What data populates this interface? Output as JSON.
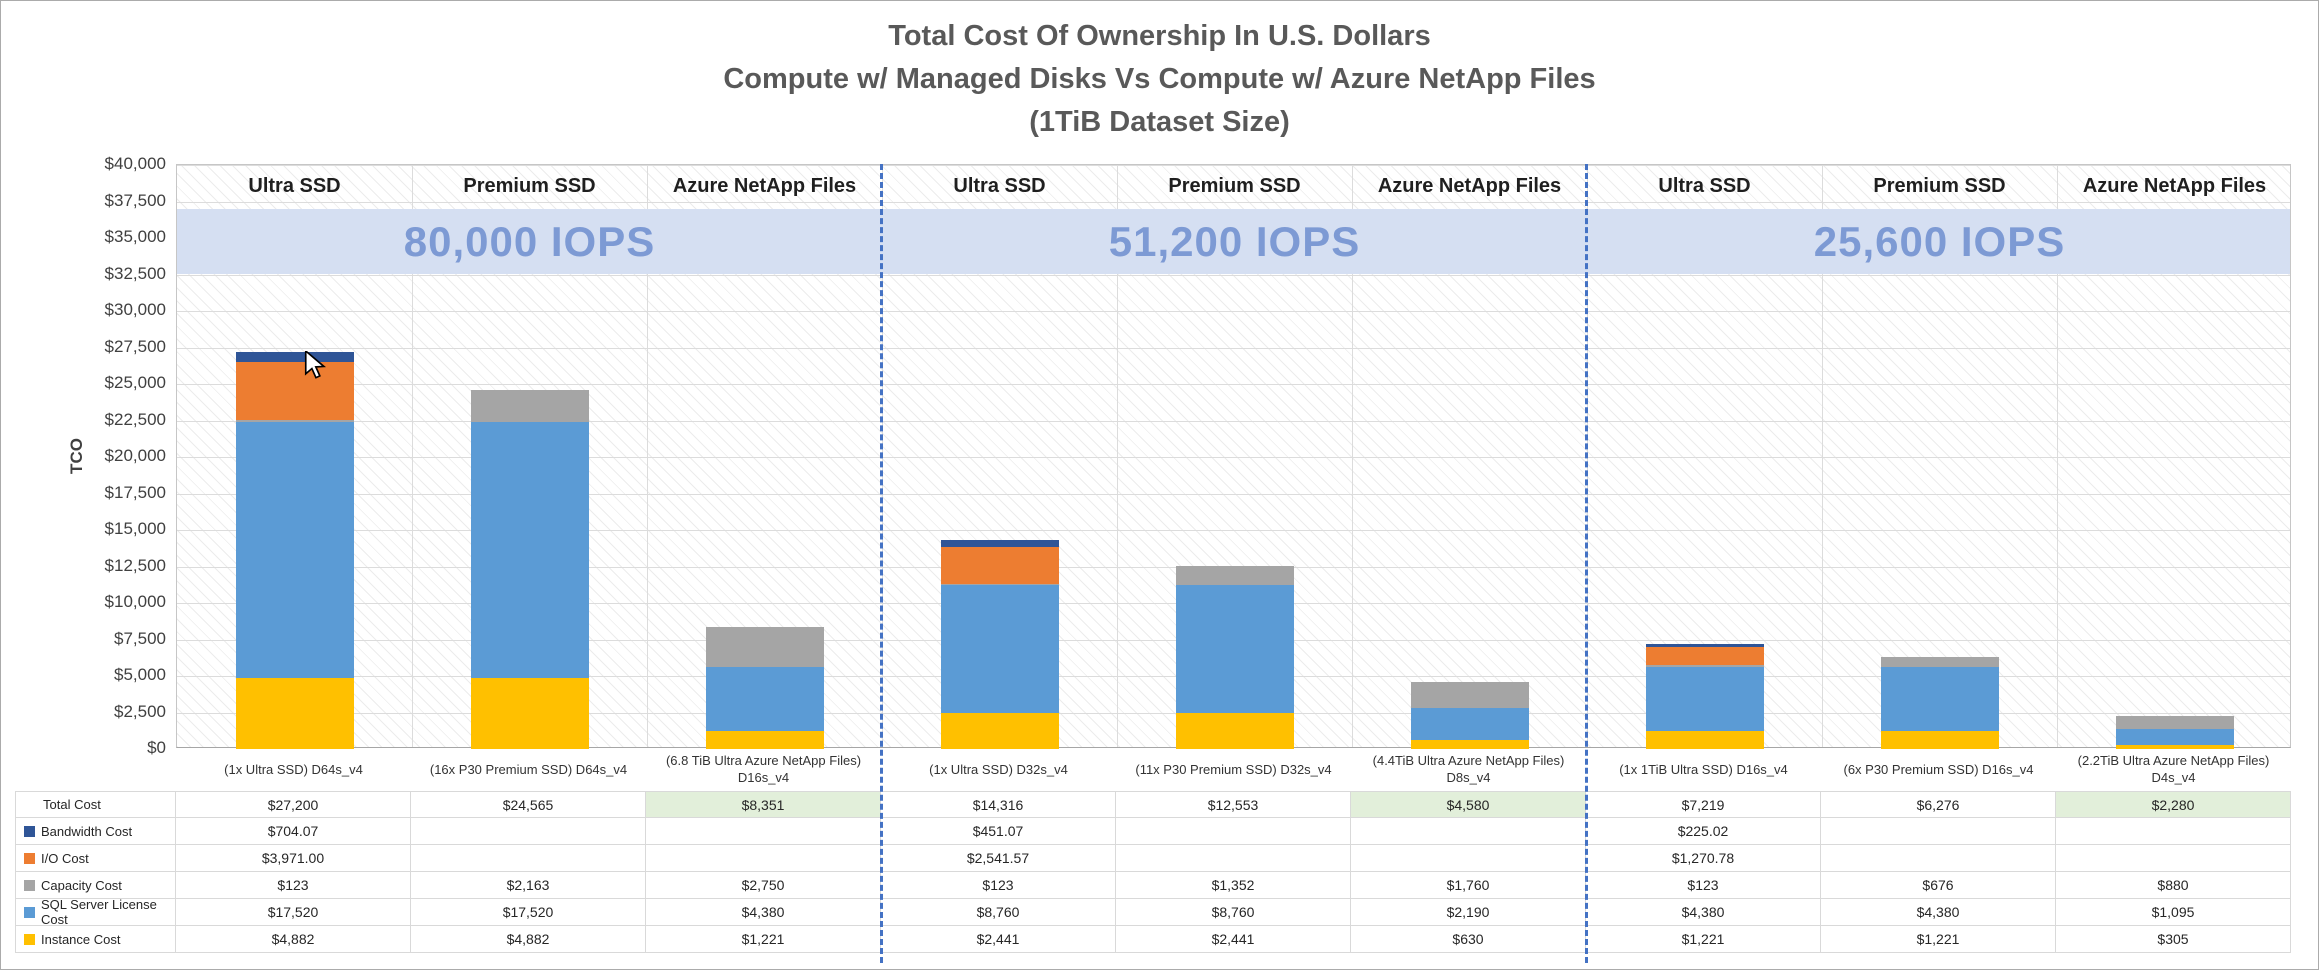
{
  "title": {
    "line1": "Total Cost Of Ownership In U.S. Dollars",
    "line2": "Compute w/ Managed Disks Vs Compute w/ Azure NetApp Files",
    "line3": "(1TiB Dataset Size)"
  },
  "y_axis": {
    "label": "TCO",
    "step": 2500,
    "ticks": [
      "$0",
      "$2,500",
      "$5,000",
      "$7,500",
      "$10,000",
      "$12,500",
      "$15,000",
      "$17,500",
      "$20,000",
      "$22,500",
      "$25,000",
      "$27,500",
      "$30,000",
      "$32,500",
      "$35,000",
      "$37,500",
      "$40,000"
    ]
  },
  "groups": [
    {
      "iops_label": "80,000 IOPS",
      "columns": [
        "Ultra SSD",
        "Premium SSD",
        "Azure NetApp Files"
      ]
    },
    {
      "iops_label": "51,200 IOPS",
      "columns": [
        "Ultra SSD",
        "Premium SSD",
        "Azure NetApp Files"
      ]
    },
    {
      "iops_label": "25,600 IOPS",
      "columns": [
        "Ultra SSD",
        "Premium SSD",
        "Azure NetApp Files"
      ]
    }
  ],
  "chart_data": {
    "type": "bar",
    "stacked": true,
    "title": "Total Cost Of Ownership In U.S. Dollars",
    "ylabel": "TCO",
    "ylim": [
      0,
      40000
    ],
    "grid": true,
    "categories": [
      "(1x Ultra SSD) D64s_v4",
      "(16x P30 Premium SSD) D64s_v4",
      "(6.8 TiB Ultra Azure NetApp Files) D16s_v4",
      "(1x Ultra SSD) D32s_v4",
      "(11x P30 Premium SSD) D32s_v4",
      "(4.4TiB Ultra Azure NetApp Files) D8s_v4",
      "(1x 1TiB Ultra SSD) D16s_v4",
      "(6x P30 Premium SSD) D16s_v4",
      "(2.2TiB Ultra Azure NetApp Files) D4s_v4"
    ],
    "series": [
      {
        "name": "Instance Cost",
        "color": "#FFC000",
        "values": [
          4882,
          4882,
          1221,
          2441,
          2441,
          630,
          1221,
          1221,
          305
        ]
      },
      {
        "name": "SQL Server License Cost",
        "color": "#5B9BD5",
        "values": [
          17520,
          17520,
          4380,
          8760,
          8760,
          2190,
          4380,
          4380,
          1095
        ]
      },
      {
        "name": "Capacity Cost",
        "color": "#A5A5A5",
        "values": [
          123,
          2163,
          2750,
          123,
          1352,
          1760,
          123,
          676,
          880
        ]
      },
      {
        "name": "I/O Cost",
        "color": "#ED7D31",
        "values": [
          3971,
          0,
          0,
          2541.57,
          0,
          0,
          1270.78,
          0,
          0
        ]
      },
      {
        "name": "Bandwidth Cost",
        "color": "#2F5597",
        "values": [
          704.07,
          0,
          0,
          451.07,
          0,
          0,
          225.02,
          0,
          0
        ]
      }
    ],
    "totals": [
      27200,
      24565,
      8351,
      14316,
      12553,
      4580,
      7219,
      6276,
      2280
    ],
    "stack_order": "bottom-up",
    "legend_position": "table-left"
  },
  "table": {
    "rows": [
      {
        "label": "Total Cost",
        "swatch": null,
        "highlight": [
          2,
          5,
          8
        ],
        "values": [
          "$27,200",
          "$24,565",
          "$8,351",
          "$14,316",
          "$12,553",
          "$4,580",
          "$7,219",
          "$6,276",
          "$2,280"
        ]
      },
      {
        "label": "Bandwidth Cost",
        "swatch": "#2F5597",
        "values": [
          "$704.07",
          "",
          "",
          "$451.07",
          "",
          "",
          "$225.02",
          "",
          ""
        ]
      },
      {
        "label": "I/O Cost",
        "swatch": "#ED7D31",
        "values": [
          "$3,971.00",
          "",
          "",
          "$2,541.57",
          "",
          "",
          "$1,270.78",
          "",
          ""
        ]
      },
      {
        "label": "Capacity Cost",
        "swatch": "#A5A5A5",
        "values": [
          "$123",
          "$2,163",
          "$2,750",
          "$123",
          "$1,352",
          "$1,760",
          "$123",
          "$676",
          "$880"
        ]
      },
      {
        "label": "SQL Server License Cost",
        "swatch": "#5B9BD5",
        "values": [
          "$17,520",
          "$17,520",
          "$4,380",
          "$8,760",
          "$8,760",
          "$2,190",
          "$4,380",
          "$4,380",
          "$1,095"
        ]
      },
      {
        "label": "Instance Cost",
        "swatch": "#FFC000",
        "values": [
          "$4,882",
          "$4,882",
          "$1,221",
          "$2,441",
          "$2,441",
          "$630",
          "$1,221",
          "$1,221",
          "$305"
        ]
      }
    ]
  },
  "colors": {
    "title_text": "#595959",
    "iops_band_bg": "#D5DFF2",
    "iops_text": "#7D9AD4",
    "group_divider": "#4472C4",
    "total_highlight": "#E2EFDA",
    "gridline": "#DCDCDC"
  },
  "icons": {
    "cursor": "arrow-pointer"
  }
}
